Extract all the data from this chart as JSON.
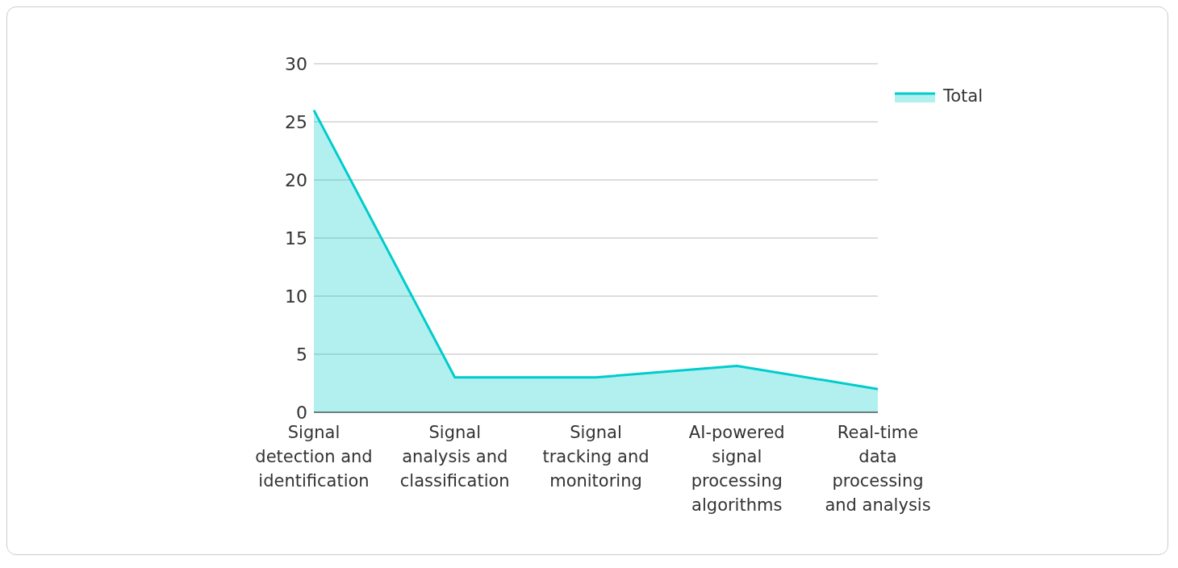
{
  "chart_data": {
    "type": "area",
    "categories": [
      "Signal detection and identification",
      "Signal analysis and classification",
      "Signal tracking and monitoring",
      "AI-powered signal processing algorithms",
      "Real-time data processing and analysis"
    ],
    "series": [
      {
        "name": "Total",
        "color": "#00cccc",
        "values": [
          26,
          3,
          3,
          4,
          2
        ]
      }
    ],
    "ylim": [
      0,
      30
    ],
    "yticks": [
      0,
      5,
      10,
      15,
      20,
      25,
      30
    ],
    "grid": "y",
    "legend": "top right",
    "marker": "none"
  }
}
